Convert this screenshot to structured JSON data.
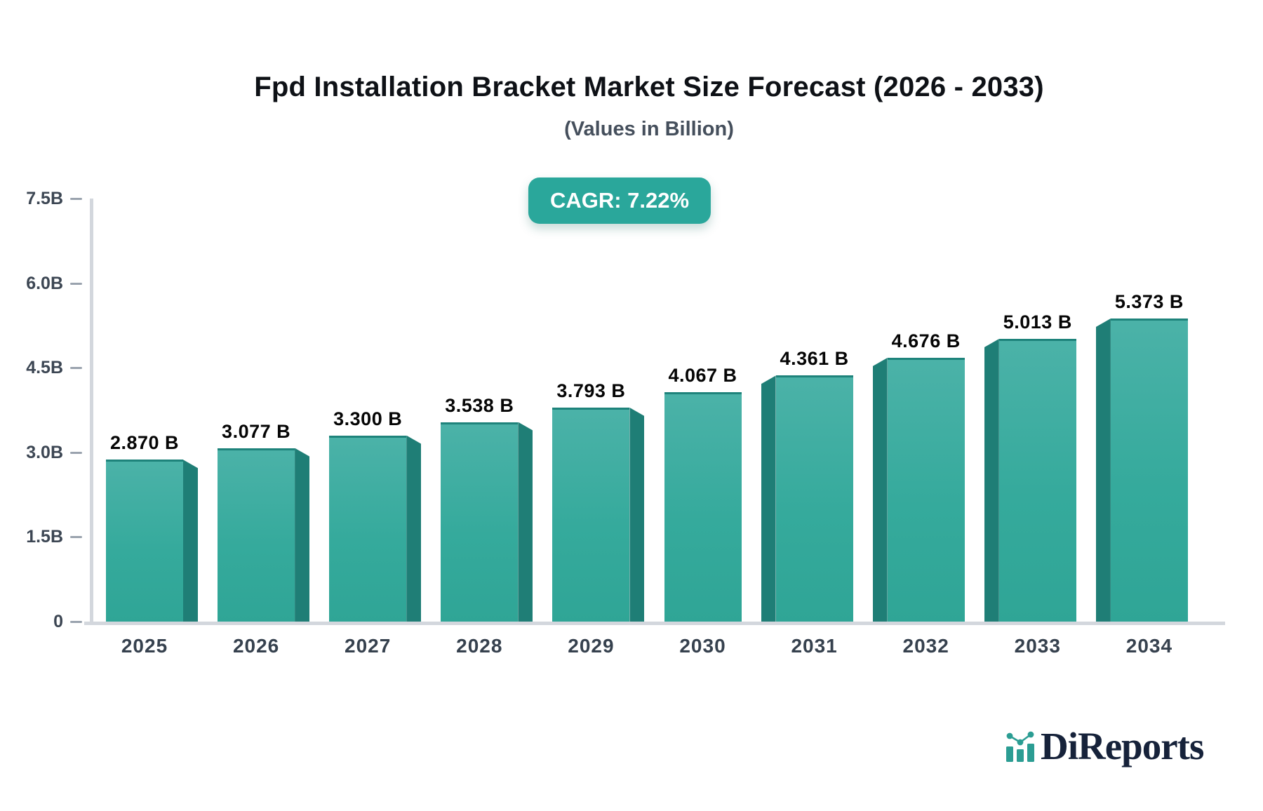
{
  "header": {
    "title": "Fpd Installation Bracket Market Size Forecast (2026 - 2033)",
    "subtitle": "(Values in Billion)",
    "cagr_badge": "CAGR: 7.22%"
  },
  "chart_data": {
    "type": "bar",
    "title": "Fpd Installation Bracket Market Size Forecast (2026 - 2033)",
    "subtitle": "(Values in Billion)",
    "cagr_percent": 7.22,
    "categories": [
      "2025",
      "2026",
      "2027",
      "2028",
      "2029",
      "2030",
      "2031",
      "2032",
      "2033",
      "2034"
    ],
    "values": [
      2.87,
      3.077,
      3.3,
      3.538,
      3.793,
      4.067,
      4.361,
      4.676,
      5.013,
      5.373
    ],
    "value_labels": [
      "2.870 B",
      "3.077 B",
      "3.300 B",
      "3.538 B",
      "3.793 B",
      "4.067 B",
      "4.361 B",
      "4.676 B",
      "5.013 B",
      "5.373 B"
    ],
    "xlabel": "",
    "ylabel": "",
    "ylim": [
      0,
      7.5
    ],
    "y_ticks": [
      {
        "label": "0",
        "value": 0
      },
      {
        "label": "1.5B",
        "value": 1.5
      },
      {
        "label": "3.0B",
        "value": 3.0
      },
      {
        "label": "4.5B",
        "value": 4.5
      },
      {
        "label": "6.0B",
        "value": 6.0
      },
      {
        "label": "7.5B",
        "value": 7.5
      }
    ],
    "grid": false,
    "legend": null,
    "bar_style": "3d",
    "colors": {
      "bar_face_top": "#4bb2a8",
      "bar_face_bottom": "#2fa596",
      "bar_side": "#1f7e76",
      "bar_top_edge": "#1e837b",
      "badge": "#2aa79b",
      "axis_line": "#d3d7dd",
      "tick": "#9aa3ae",
      "axis_text": "#3c4653",
      "value_text": "#050505"
    }
  },
  "footer": {
    "logo_text": "DiReports"
  }
}
